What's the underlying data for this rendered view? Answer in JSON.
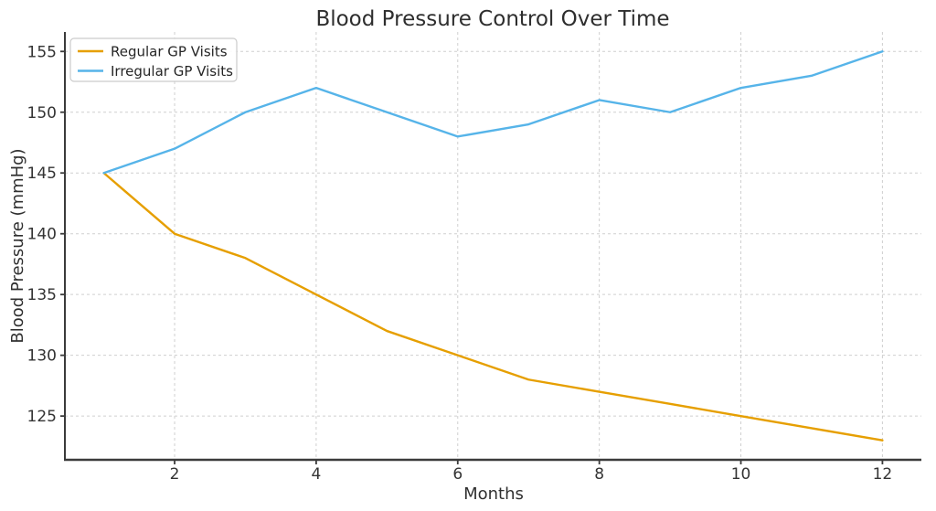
{
  "figure": {
    "background": "#ffffff"
  },
  "chart_data": {
    "type": "line",
    "title": "Blood Pressure Control Over Time",
    "xlabel": "Months",
    "ylabel": "Blood Pressure (mmHg)",
    "x": [
      1,
      2,
      3,
      4,
      5,
      6,
      7,
      8,
      9,
      10,
      11,
      12
    ],
    "series": [
      {
        "name": "Regular GP Visits",
        "color": "#E69F00",
        "values": [
          145,
          140,
          138,
          135,
          132,
          130,
          128,
          127,
          126,
          125,
          124,
          123
        ]
      },
      {
        "name": "Irregular GP Visits",
        "color": "#56B4E9",
        "values": [
          145,
          147,
          150,
          152,
          150,
          148,
          149,
          151,
          150,
          152,
          153,
          155
        ]
      }
    ],
    "xticks": [
      2,
      4,
      6,
      8,
      10,
      12
    ],
    "yticks": [
      125,
      130,
      135,
      140,
      145,
      150,
      155
    ],
    "xlim": [
      0.45,
      12.55
    ],
    "ylim": [
      121.4,
      156.6
    ],
    "grid": true,
    "legend_position": "upper left"
  },
  "style": {
    "grid_color": "#cfcfcf",
    "spine_color": "#3b3b3b",
    "legend_border_color": "#cccccc",
    "legend_background": "#ffffff",
    "line_width": 2.4
  }
}
